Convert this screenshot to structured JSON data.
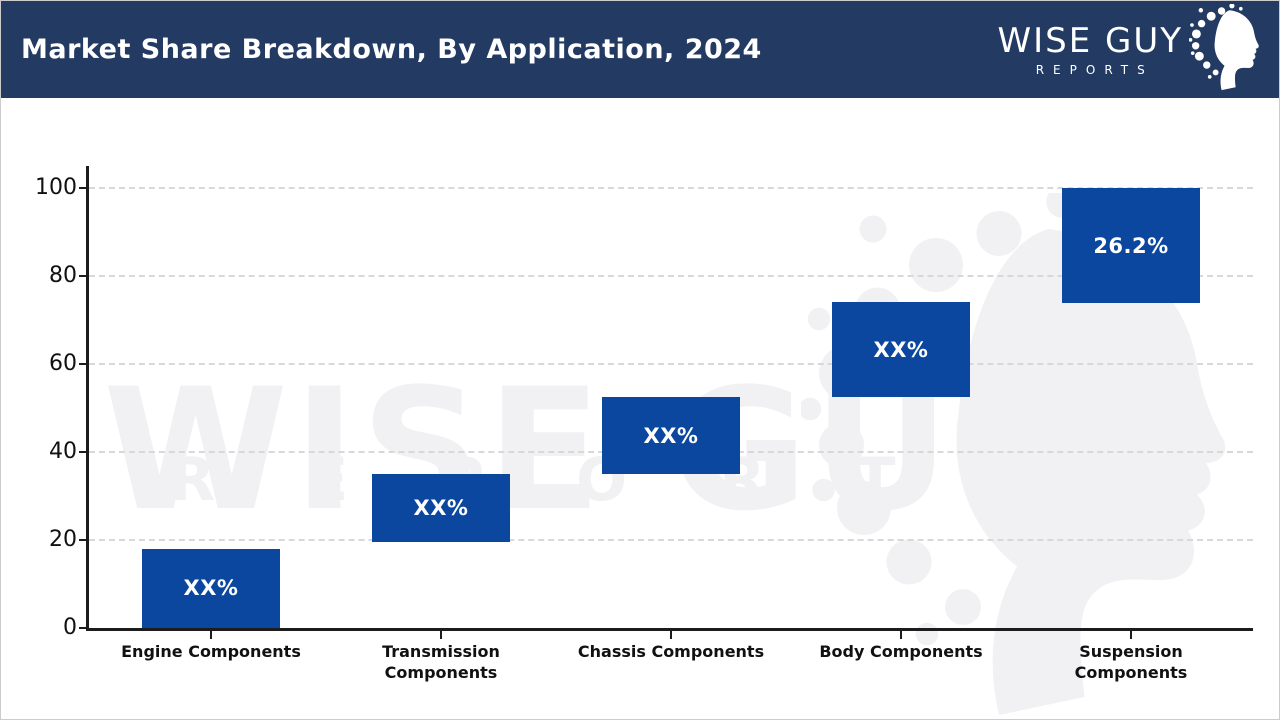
{
  "header": {
    "title": "Market Share Breakdown, By Application, 2024",
    "logo": {
      "line1": "WISE GUY",
      "line2": "REPORTS"
    }
  },
  "watermark": {
    "line1": "WISE GUY",
    "line2": "REPORTS"
  },
  "colors": {
    "header_bg": "#233a63",
    "bar": "#0b479e",
    "grid": "#d8d8d8",
    "axis": "#1c1c1c",
    "watermark": "#f1f1f4",
    "bar_label": "#ffffff"
  },
  "chart_data": {
    "type": "bar",
    "subtype": "floating-waterfall",
    "title": "Market Share Breakdown, By Application, 2024",
    "xlabel": "",
    "ylabel": "",
    "ylim": [
      0,
      100
    ],
    "yticks": [
      0,
      20,
      40,
      60,
      80,
      100
    ],
    "grid": "horizontal-dashed",
    "legend": "none",
    "categories": [
      "Engine Components",
      "Transmission Components",
      "Chassis Components",
      "Body Components",
      "Suspension Components"
    ],
    "bars": [
      {
        "category": "Engine Components",
        "axis_label": "Engine Components",
        "start": 0,
        "end": 18,
        "label": "XX%"
      },
      {
        "category": "Transmission Components",
        "axis_label": "Transmission\nComponents",
        "start": 19.5,
        "end": 35,
        "label": "XX%"
      },
      {
        "category": "Chassis Components",
        "axis_label": "Chassis Components",
        "start": 35,
        "end": 52.5,
        "label": "XX%"
      },
      {
        "category": "Body Components",
        "axis_label": "Body Components",
        "start": 52.5,
        "end": 74,
        "label": "XX%"
      },
      {
        "category": "Suspension Components",
        "axis_label": "Suspension\nComponents",
        "start": 73.8,
        "end": 100,
        "label": "26.2%"
      }
    ]
  }
}
